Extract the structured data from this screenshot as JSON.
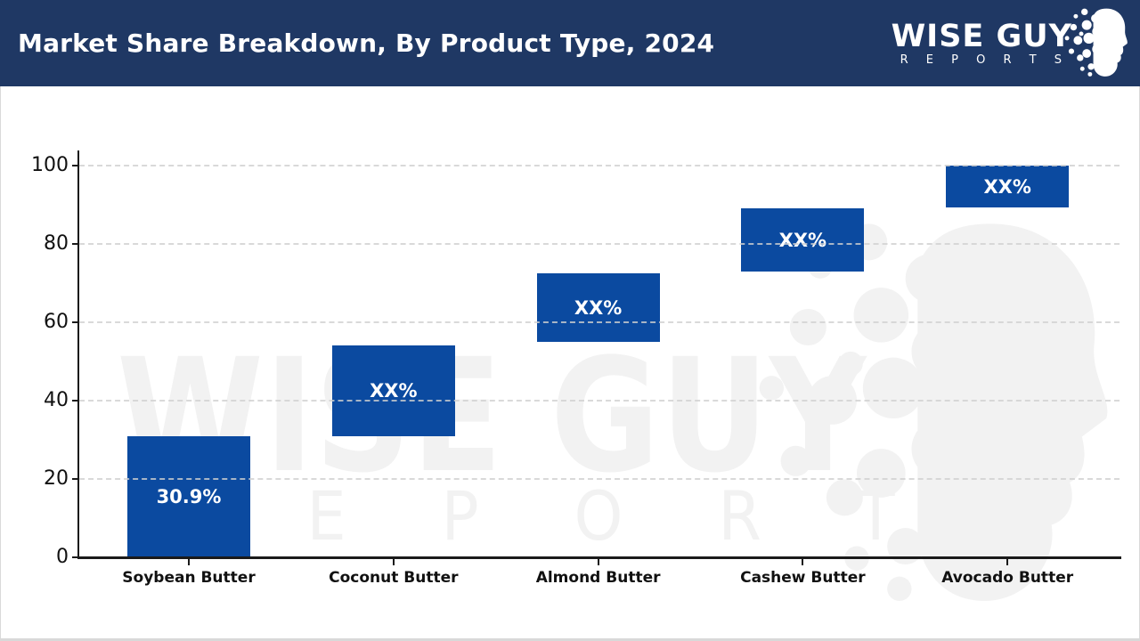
{
  "header": {
    "title": "Market Share Breakdown, By Product Type, 2024",
    "bg_color": "#1f3864",
    "logo": {
      "wordmark": "WISE GUY",
      "subtext": "R E P O R T S"
    }
  },
  "watermark": {
    "wordmark": "WISE GUY",
    "subtext": "R E P O R T S"
  },
  "chart_data": {
    "type": "bar",
    "subtype": "waterfall",
    "title": "Market Share Breakdown, By Product Type, 2024",
    "categories": [
      "Soybean Butter",
      "Coconut Butter",
      "Almond Butter",
      "Cashew Butter",
      "Avocado Butter"
    ],
    "segments": [
      {
        "category": "Soybean Butter",
        "start": 0,
        "end": 30.9,
        "label": "30.9%"
      },
      {
        "category": "Coconut Butter",
        "start": 31,
        "end": 54,
        "label": "XX%"
      },
      {
        "category": "Almond Butter",
        "start": 55,
        "end": 72.5,
        "label": "XX%"
      },
      {
        "category": "Cashew Butter",
        "start": 73,
        "end": 89,
        "label": "XX%"
      },
      {
        "category": "Avocado Butter",
        "start": 89.3,
        "end": 100,
        "label": "XX%"
      }
    ],
    "bar_labels": [
      "30.9%",
      "XX%",
      "XX%",
      "XX%",
      "XX%"
    ],
    "yticks": [
      0,
      20,
      40,
      60,
      80,
      100
    ],
    "ylim": [
      0,
      105
    ],
    "xlabel": "",
    "ylabel": "",
    "grid": "horizontal-dashed",
    "legend": "none",
    "bar_color": "#0b4aa0",
    "bar_label_color": "#ffffff",
    "axis_color": "#1a1a1a"
  }
}
